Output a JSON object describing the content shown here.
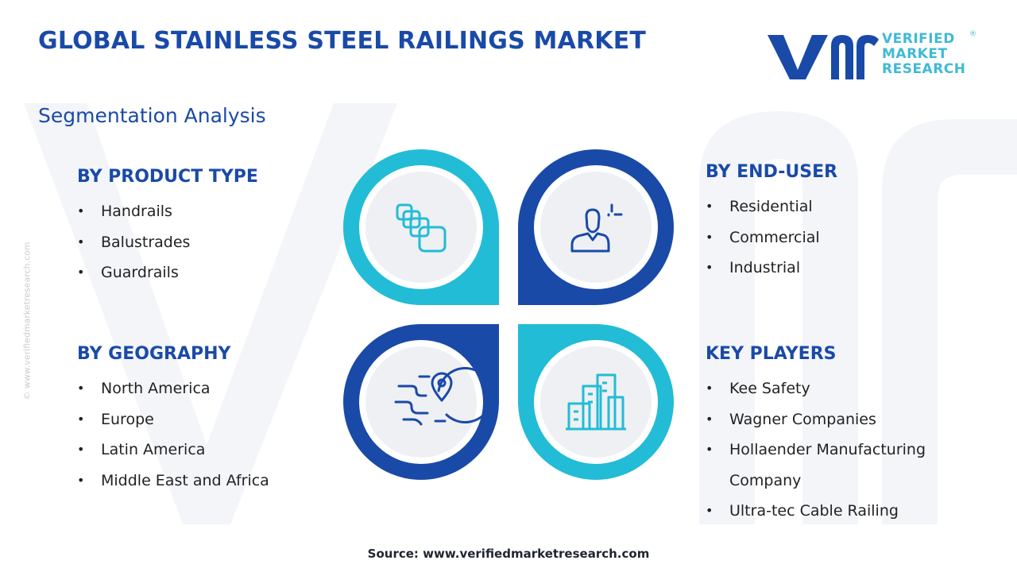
{
  "header": {
    "title": "GLOBAL STAINLESS STEEL RAILINGS MARKET",
    "subtitle": "Segmentation Analysis"
  },
  "logo": {
    "line1": "VERIFIED",
    "line2": "MARKET",
    "line3": "RESEARCH",
    "registered": "®"
  },
  "side_url": "© www.verifiedmarketresearch.com",
  "segments": {
    "product_type": {
      "heading": "BY PRODUCT TYPE",
      "items": [
        "Handrails",
        "Balustrades",
        "Guardrails"
      ]
    },
    "end_user": {
      "heading": "BY END-USER",
      "items": [
        "Residential",
        "Commercial",
        "Industrial"
      ]
    },
    "geography": {
      "heading": "BY GEOGRAPHY",
      "items": [
        "North America",
        "Europe",
        "Latin America",
        "Middle East and Africa"
      ]
    },
    "key_players": {
      "heading": "KEY PLAYERS",
      "items": [
        "Kee Safety",
        "Wagner Companies",
        "Hollaender Manufacturing Company",
        "Ultra-tec Cable Railing"
      ]
    }
  },
  "icons": {
    "product_type": "stacked-blocks-icon",
    "end_user": "user-profile-icon",
    "geography": "globe-location-icon",
    "key_players": "buildings-icon"
  },
  "colors": {
    "navy": "#1a4aa8",
    "cyan": "#22bcd6",
    "circle_fill": "#eef0f3"
  },
  "source": "Source: www.verifiedmarketresearch.com"
}
